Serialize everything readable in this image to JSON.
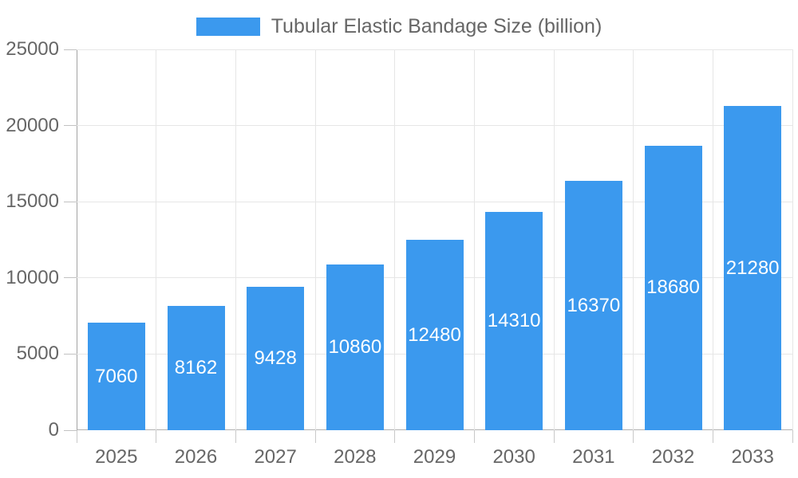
{
  "colors": {
    "bar": "#3B99EE",
    "bar_value_text": "#ffffff",
    "tick_text": "#666666",
    "gridline": "#e6e6e6",
    "axis_line": "#a8a8a8",
    "background": "#ffffff"
  },
  "legend": {
    "label": "Tubular Elastic Bandage Size (billion)",
    "swatch_color": "#3B99EE",
    "position": "top-center"
  },
  "chart_data": {
    "type": "bar",
    "title": "",
    "series_name": "Tubular Elastic Bandage Size (billion)",
    "categories": [
      "2025",
      "2026",
      "2027",
      "2028",
      "2029",
      "2030",
      "2031",
      "2032",
      "2033"
    ],
    "values": [
      7060,
      8162,
      9428,
      10860,
      12480,
      14310,
      16370,
      18680,
      21280
    ],
    "value_labels": [
      "7060",
      "8162",
      "9428",
      "10860",
      "12480",
      "14310",
      "16370",
      "18680",
      "21280"
    ],
    "value_labels_position": "inside-center",
    "xlabel": "",
    "ylabel": "",
    "ylim": [
      0,
      25000
    ],
    "ytick_values": [
      0,
      5000,
      10000,
      15000,
      20000,
      25000
    ],
    "ytick_labels": [
      "0",
      "5000",
      "10000",
      "15000",
      "20000",
      "25000"
    ],
    "grid": true,
    "vertical_grid_at_category_boundaries": true,
    "legend_position": "top",
    "bar_color": "#3B99EE"
  }
}
